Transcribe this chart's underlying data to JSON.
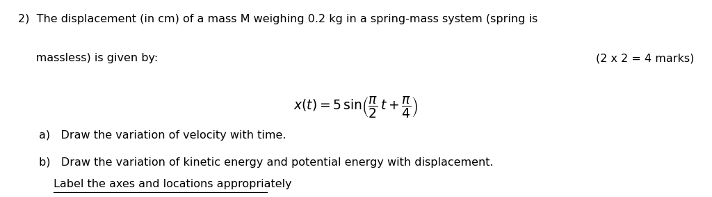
{
  "background_color": "#ffffff",
  "fig_width": 10.24,
  "fig_height": 2.83,
  "dpi": 100,
  "line1": "2)  The displacement (in cm) of a mass M weighing 0.2 kg in a spring-mass system (spring is",
  "line2": "     massless) is given by:",
  "marks": "(2 x 2 = 4 marks)",
  "equation": "$x(t) = 5\\,\\sin\\!\\left(\\dfrac{\\pi}{2}\\,t + \\dfrac{\\pi}{4}\\right)$",
  "item_a": "a)   Draw the variation of velocity with time.",
  "item_b": "b)   Draw the variation of kinetic energy and potential energy with displacement.",
  "label_note": "Label the axes and locations appropriately",
  "font_size_main": 11.5,
  "font_size_eq": 13.5,
  "text_color": "#000000",
  "font_family": "DejaVu Sans"
}
